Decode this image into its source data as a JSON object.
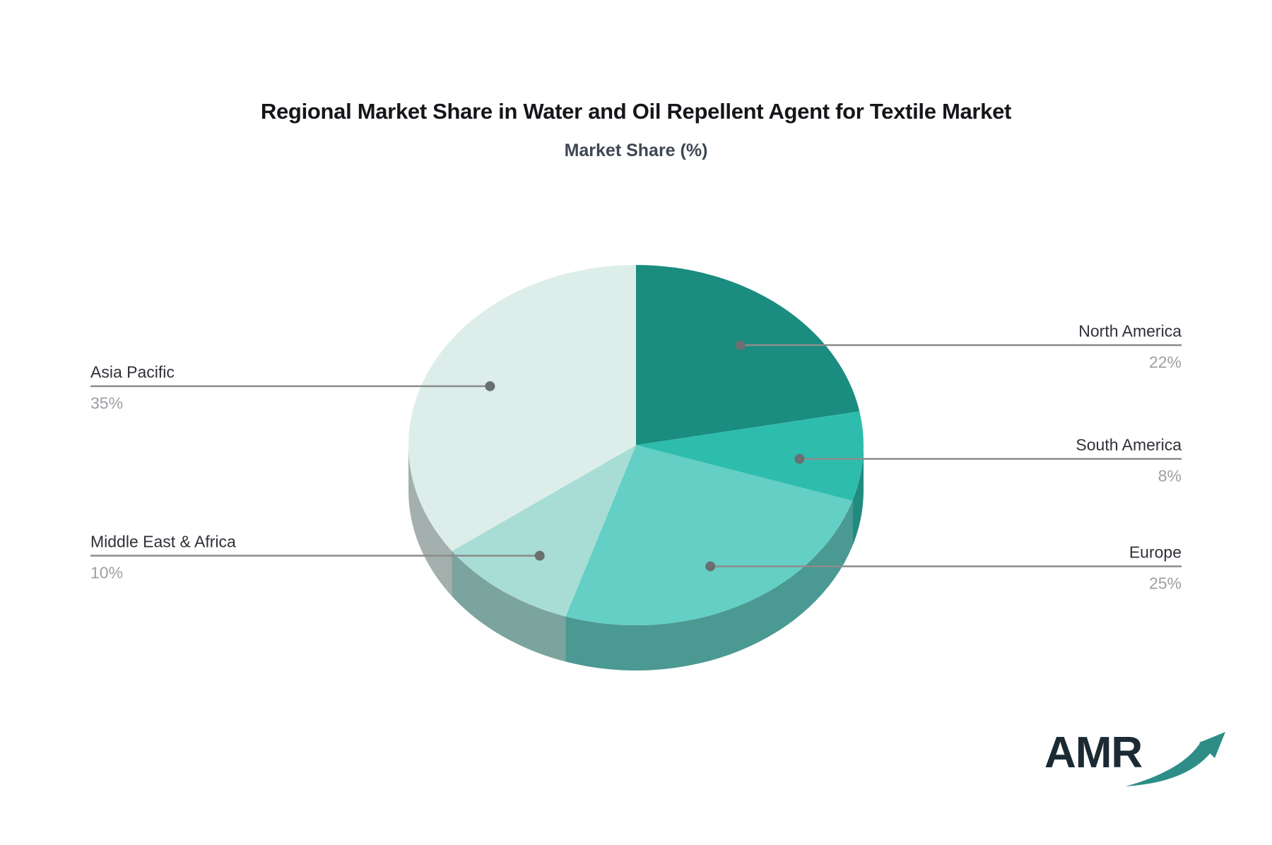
{
  "chart_data": {
    "type": "pie",
    "title": "Regional Market Share in Water and Oil Repellent Agent for Textile Market",
    "subtitle": "Market Share (%)",
    "unit": "%",
    "direction": "clockwise",
    "start_angle_deg": 0,
    "effect_3d": true,
    "legend_position": "none",
    "labels": "leader lines with region name and percent",
    "categories": [
      "North America",
      "South America",
      "Europe",
      "Middle East & Africa",
      "Asia Pacific"
    ],
    "values": [
      22,
      8,
      25,
      10,
      35
    ],
    "series": [
      {
        "name": "North America",
        "value": 22,
        "color": "#1a8c80",
        "label_side": "right"
      },
      {
        "name": "South America",
        "value": 8,
        "color": "#2ebcad",
        "label_side": "right"
      },
      {
        "name": "Europe",
        "value": 25,
        "color": "#64cfc5",
        "label_side": "right"
      },
      {
        "name": "Middle East & Africa",
        "value": 10,
        "color": "#a7ddd5",
        "label_side": "left"
      },
      {
        "name": "Asia Pacific",
        "value": 35,
        "color": "#ddeeea",
        "label_side": "left"
      }
    ]
  },
  "branding": {
    "logo_text": "AMR",
    "logo_color": "#1b2a33",
    "arrow_color": "#2e8d87"
  },
  "colors": {
    "background": "#ffffff",
    "title": "#15151a",
    "subtitle": "#3e4753",
    "label_text": "#2f3138",
    "percent_text": "#9c9fa3",
    "leader_line": "#8c8c8c",
    "dot": "#6a6f6f"
  }
}
